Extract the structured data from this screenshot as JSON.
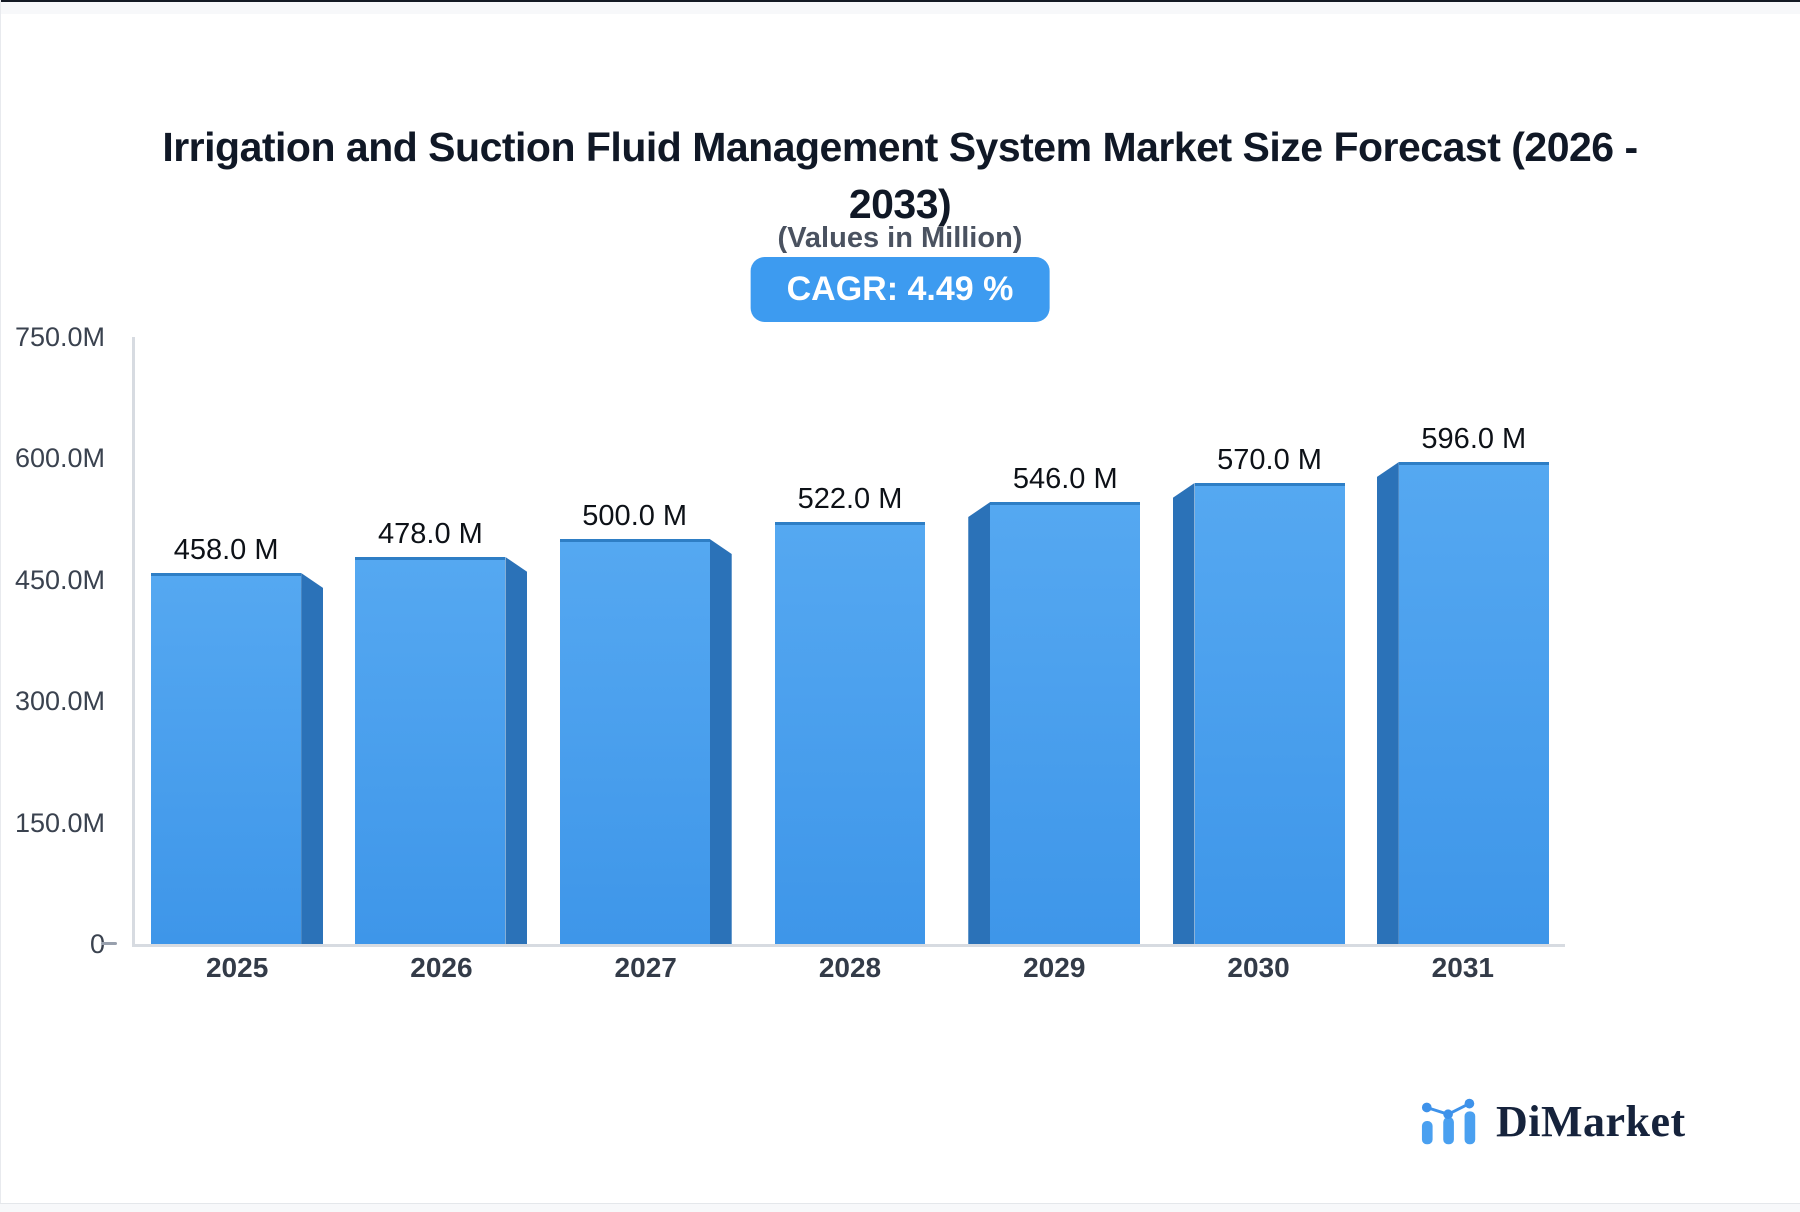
{
  "header": {
    "title_lines": [
      "Irrigation and Suction Fluid Management System Market Size Forecast (2026 -",
      "2033)"
    ],
    "subtitle": "(Values in Million)",
    "badge": "CAGR: 4.49 %"
  },
  "chart_data": {
    "type": "bar",
    "title": "Irrigation and Suction Fluid Management System Market Size Forecast (2026 - 2033)",
    "subtitle": "(Values in Million)",
    "cagr_badge": "CAGR: 4.49 %",
    "categories": [
      "2025",
      "2026",
      "2027",
      "2028",
      "2029",
      "2030",
      "2031"
    ],
    "values": [
      458,
      478,
      500,
      522,
      546,
      570,
      596
    ],
    "value_labels": [
      "458.0 M",
      "478.0 M",
      "500.0 M",
      "522.0 M",
      "546.0 M",
      "570.0 M",
      "596.0 M"
    ],
    "xlabel": "",
    "ylabel": "",
    "ylim": [
      0,
      750
    ],
    "yticks": [
      {
        "value": 750,
        "label": "750.0M"
      },
      {
        "value": 600,
        "label": "600.0M"
      },
      {
        "value": 450,
        "label": "450.0M"
      },
      {
        "value": 300,
        "label": "300.0M"
      },
      {
        "value": 150,
        "label": "150.0M"
      },
      {
        "value": 0,
        "label": "0"
      }
    ],
    "grid": false,
    "legend": false,
    "colors": {
      "bar_top": "#55a8f1",
      "bar_bottom": "#3e96e9",
      "bar_side": "#2b72b8",
      "bar_border": "#2e7ec5",
      "badge_bg": "#3d9bf0",
      "badge_text": "#ffffff",
      "axis": "#d7dbe1"
    }
  },
  "branding": {
    "name": "DiMarket",
    "icon": "bar-chart-trend-logo-icon",
    "icon_bar_color": "#4aa0f0",
    "icon_line_color": "#3e92ea",
    "text_color": "#16233c"
  }
}
